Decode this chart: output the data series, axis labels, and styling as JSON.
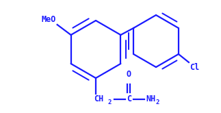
{
  "bg_color": "#ffffff",
  "line_color": "#1a1aff",
  "text_color": "#1a1aff",
  "fig_width": 3.23,
  "fig_height": 1.65,
  "dpi": 100,
  "linewidth": 1.6,
  "fontsize": 7.5,
  "font_family": "monospace",
  "MeO_label": "MeO",
  "Cl_label": "Cl",
  "O_label": "O"
}
